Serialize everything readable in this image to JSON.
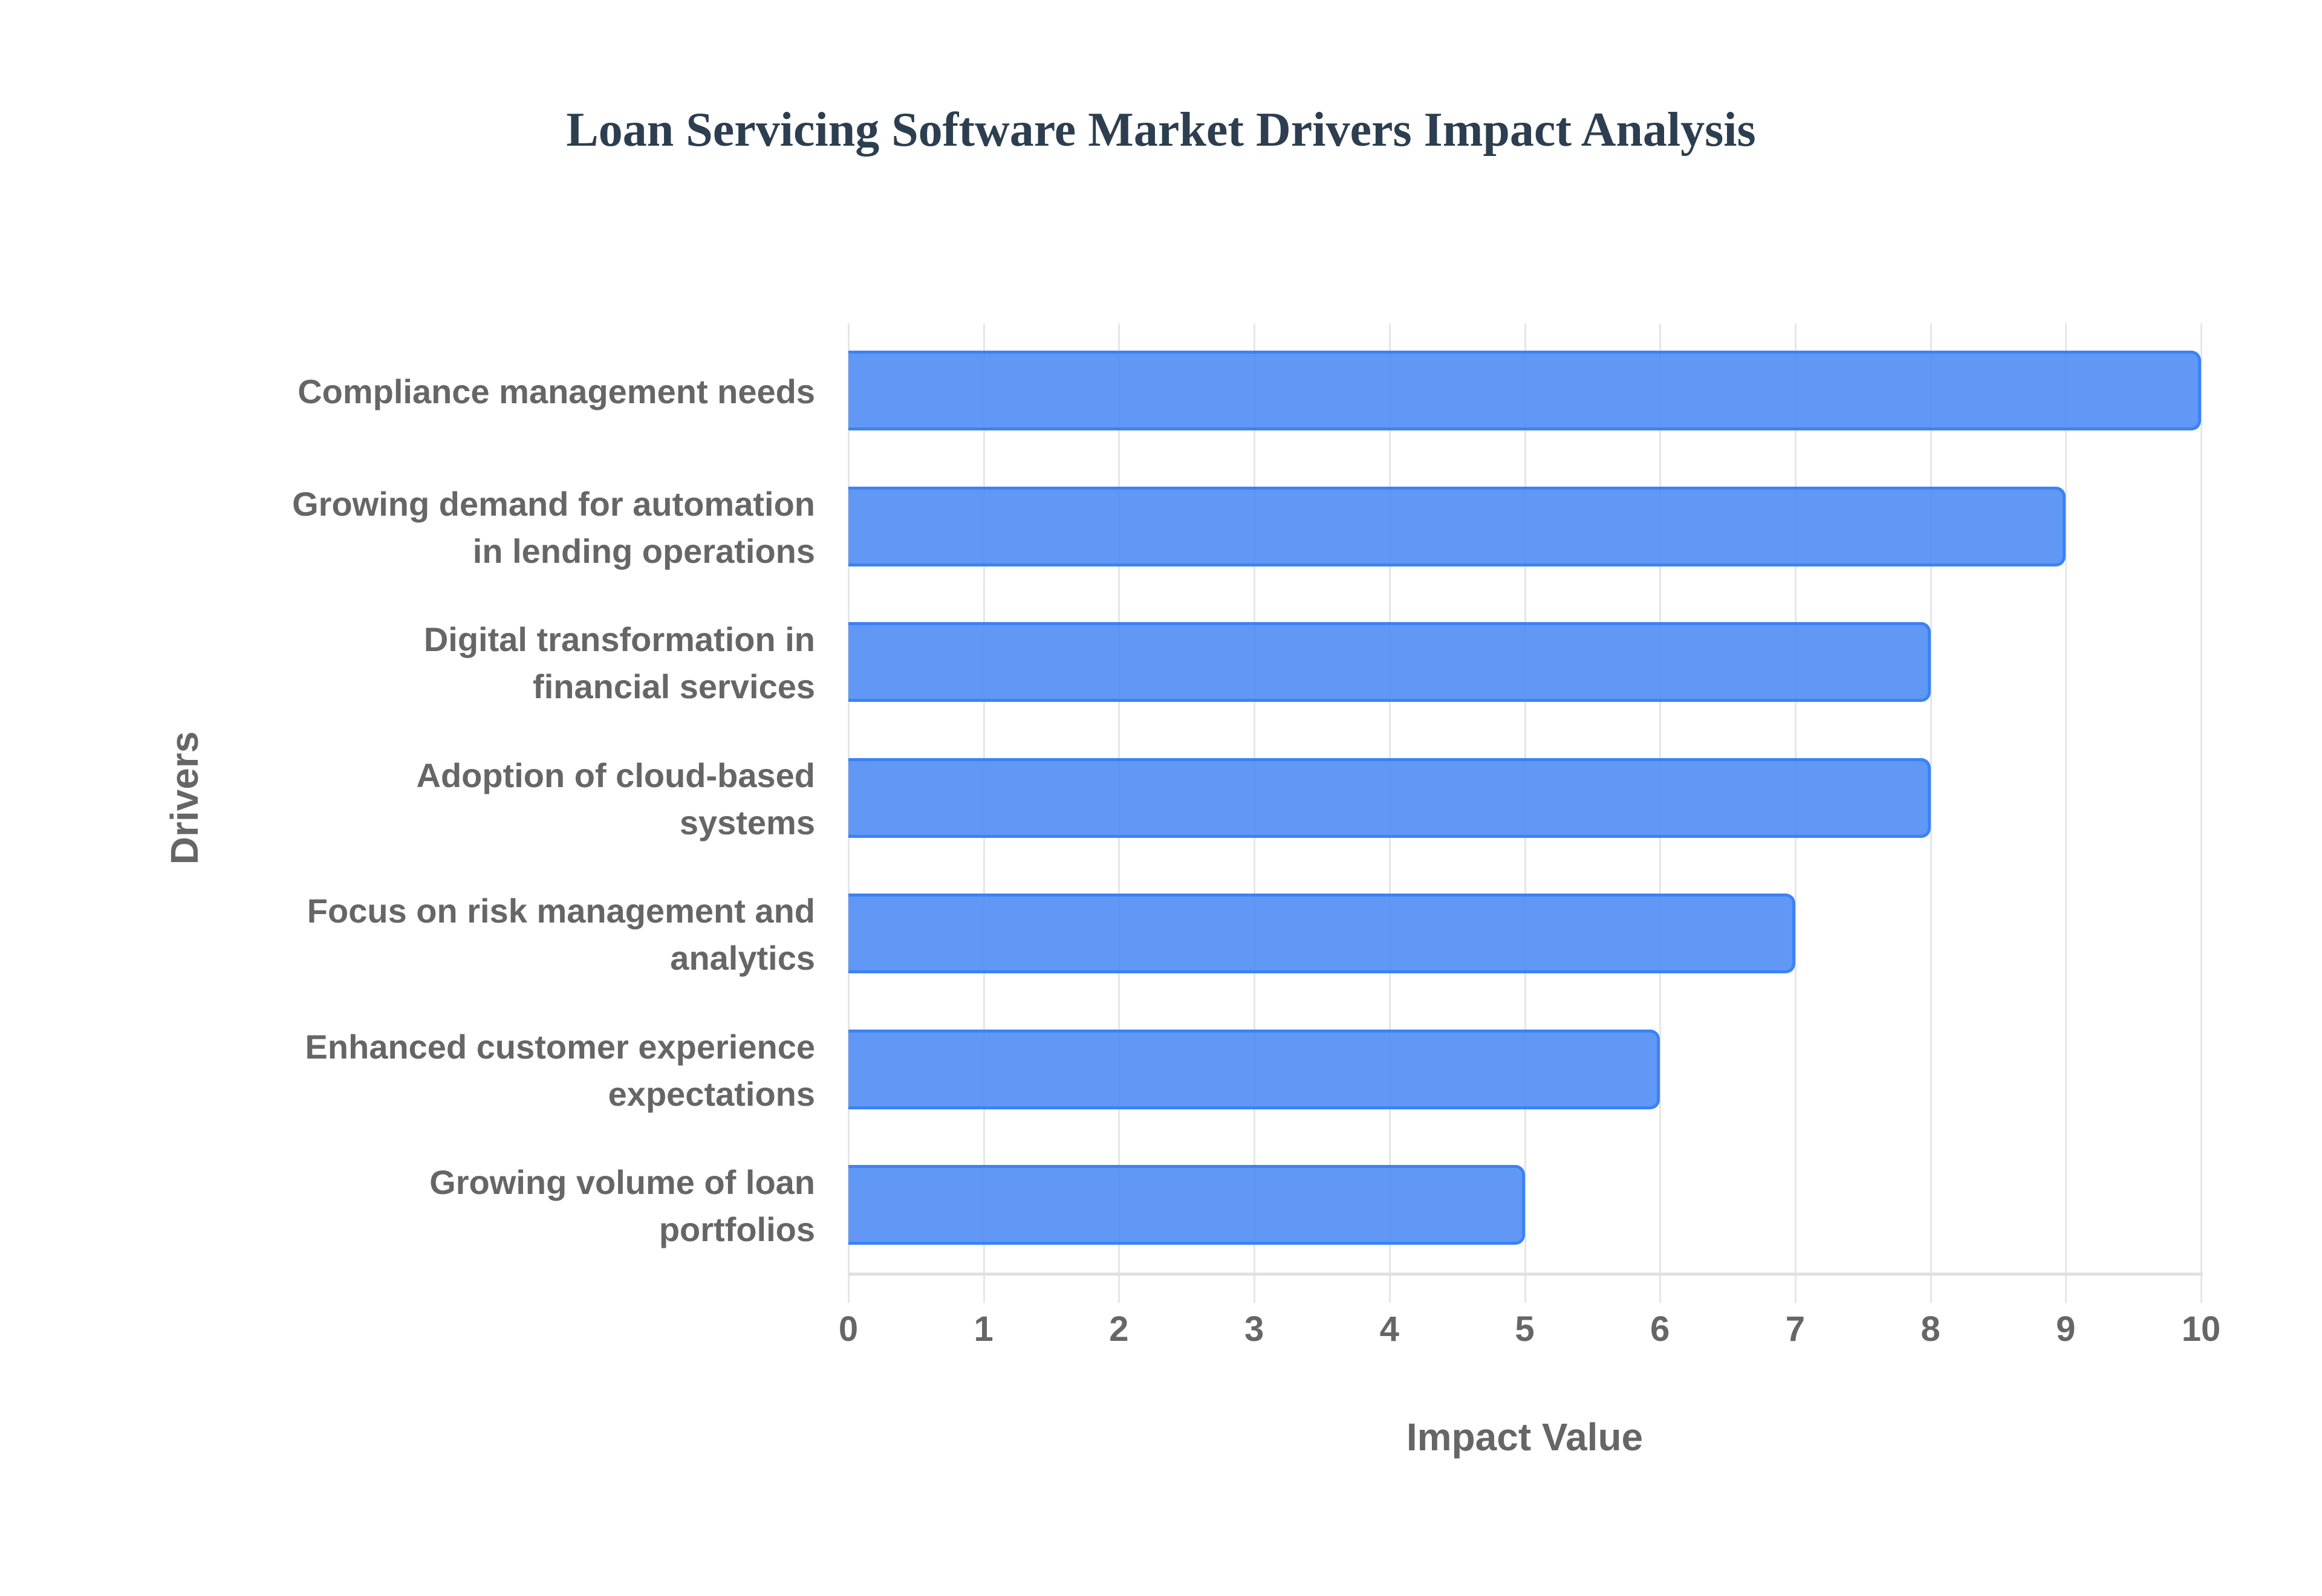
{
  "chart_data": {
    "type": "bar",
    "orientation": "horizontal",
    "title": "Loan Servicing Software Market Drivers Impact Analysis",
    "xlabel": "Impact Value",
    "ylabel": "Drivers",
    "xlim": [
      0,
      10
    ],
    "x_ticks": [
      "0",
      "1",
      "2",
      "3",
      "4",
      "5",
      "6",
      "7",
      "8",
      "9",
      "10"
    ],
    "grid": true,
    "legend": null,
    "categories": [
      "Compliance management needs",
      "Growing demand for automation in lending operations",
      "Digital transformation in financial services",
      "Adoption of cloud-based systems",
      "Focus on risk management and analytics",
      "Enhanced customer experience expectations",
      "Growing volume of loan portfolios"
    ],
    "category_lines": [
      [
        "Compliance management needs"
      ],
      [
        "Growing demand for automation",
        "in lending operations"
      ],
      [
        "Digital transformation in",
        "financial services"
      ],
      [
        "Adoption of cloud-based",
        "systems"
      ],
      [
        "Focus on risk management and",
        "analytics"
      ],
      [
        "Enhanced customer experience",
        "expectations"
      ],
      [
        "Growing volume of loan",
        "portfolios"
      ]
    ],
    "values": [
      10,
      9,
      8,
      8,
      7,
      6,
      5
    ],
    "colors": {
      "bar_fill": "#4a89f4",
      "bar_border": "#3b82f6",
      "title": "#2c3e50",
      "text": "#666666",
      "grid": "#e6e6e6"
    }
  }
}
